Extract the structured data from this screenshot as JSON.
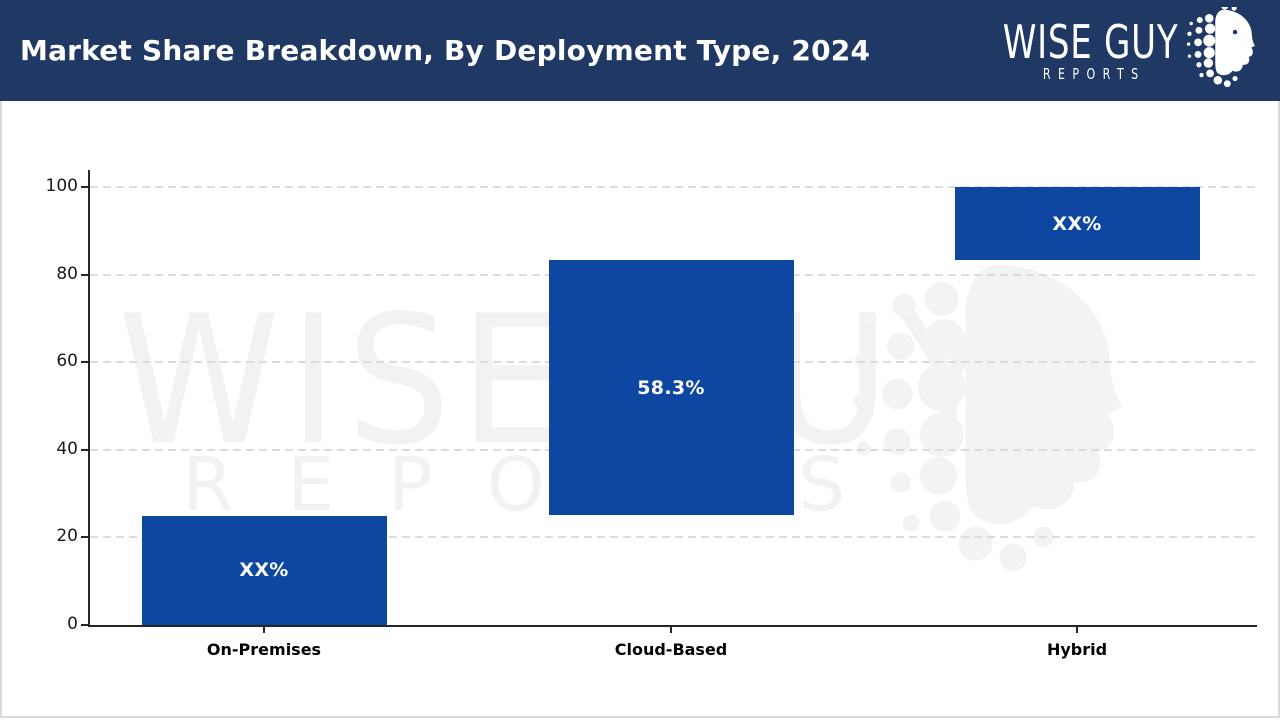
{
  "header": {
    "title": "Market Share Breakdown, By Deployment Type, 2024",
    "logo": {
      "name": "WISE GUY",
      "subtitle": "REPORTS"
    }
  },
  "watermark": {
    "line1": "WISE GUY",
    "line2": "REPORTS"
  },
  "chart_data": {
    "type": "bar",
    "subtype": "stacked-waterfall-percent",
    "title": "Market Share Breakdown, By Deployment Type, 2024",
    "categories": [
      "On-Premises",
      "Cloud-Based",
      "Hybrid"
    ],
    "segments": [
      {
        "category": "On-Premises",
        "start": 0,
        "end": 25,
        "value": 25,
        "label": "XX%"
      },
      {
        "category": "Cloud-Based",
        "start": 25,
        "end": 83.3,
        "value": 58.3,
        "label": "58.3%"
      },
      {
        "category": "Hybrid",
        "start": 83.3,
        "end": 100,
        "value": 16.7,
        "label": "XX%"
      }
    ],
    "xlabel": "",
    "ylabel": "",
    "ylim": [
      0,
      100
    ],
    "yticks": [
      0,
      20,
      40,
      60,
      80,
      100
    ],
    "grid": "horizontal-dashed",
    "legend": "none"
  },
  "colors": {
    "header_bg": "#1f3864",
    "header_text": "#ffffff",
    "bar": "#0d47a1",
    "bar_label": "#ffffff",
    "grid": "#dcdcdc",
    "axis": "#262626",
    "tick_label": "#1a1a1a",
    "category_label": "#000000",
    "watermark": "#f2f2f2",
    "card_border": "#d9d9d9"
  }
}
